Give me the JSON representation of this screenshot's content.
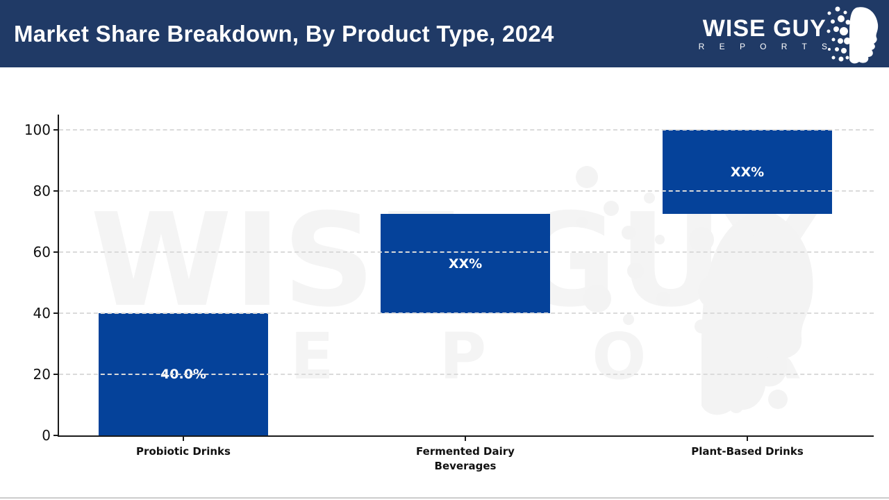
{
  "header": {
    "bg_color": "#203a66",
    "title": "Market Share Breakdown, By Product Type, 2024",
    "logo": {
      "line1": "WISE GUY",
      "line2": "R E P O R T S"
    }
  },
  "watermark": {
    "line1": "WISE GUY",
    "line2": "R E P O R T S"
  },
  "chart_data": {
    "type": "bar",
    "subtype": "waterfall",
    "title": "Market Share Breakdown, By Product Type, 2024",
    "categories": [
      "Probiotic Drinks",
      "Fermented Dairy Beverages",
      "Plant-Based Drinks"
    ],
    "segments": [
      {
        "category": "Probiotic Drinks",
        "start": 0,
        "end": 40,
        "value_label": "40.0%"
      },
      {
        "category": "Fermented Dairy Beverages",
        "start": 40,
        "end": 72.5,
        "value_label": "XX%"
      },
      {
        "category": "Plant-Based Drinks",
        "start": 72.5,
        "end": 100,
        "value_label": "XX%"
      }
    ],
    "bar_color": "#05429a",
    "value_label_color": "#ffffff",
    "ylim": [
      0,
      105
    ],
    "yticks": [
      0,
      20,
      40,
      60,
      80,
      100
    ],
    "grid": {
      "horizontal": true,
      "style": "dashed",
      "color": "#dadada",
      "above_bars": true
    },
    "xlabel": "",
    "ylabel": "",
    "legend": "none"
  }
}
